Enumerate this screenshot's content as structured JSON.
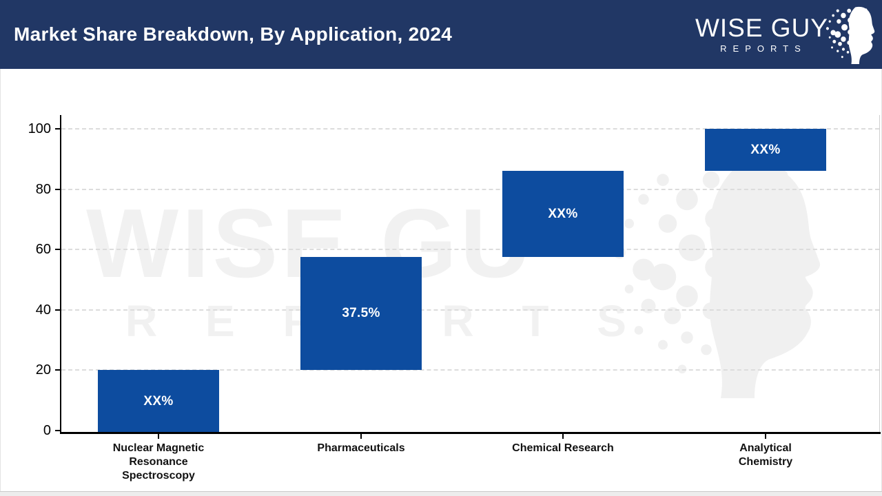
{
  "header": {
    "title": "Market Share Breakdown, By Application, 2024",
    "brand_line1": "WISE GUY",
    "brand_line2": "REPORTS"
  },
  "watermark": {
    "line1": "WISE GU",
    "line2": "R E P O R T S"
  },
  "chart_data": {
    "type": "bar",
    "subtype": "floating-waterfall",
    "title": "Market Share Breakdown, By Application, 2024",
    "categories": [
      "Nuclear Magnetic\nResonance\nSpectroscopy",
      "Pharmaceuticals",
      "Chemical Research",
      "Analytical\nChemistry"
    ],
    "series": [
      {
        "name": "Market Share",
        "segments": [
          {
            "category": "Nuclear Magnetic Resonance Spectroscopy",
            "start": 0,
            "end": 20,
            "label": "XX%"
          },
          {
            "category": "Pharmaceuticals",
            "start": 20,
            "end": 57.5,
            "label": "37.5%"
          },
          {
            "category": "Chemical Research",
            "start": 57.5,
            "end": 86,
            "label": "XX%"
          },
          {
            "category": "Analytical Chemistry",
            "start": 86,
            "end": 100,
            "label": "XX%"
          }
        ]
      }
    ],
    "values": [
      20,
      37.5,
      28.5,
      14
    ],
    "yticks": [
      0,
      20,
      40,
      60,
      80,
      100
    ],
    "ylim": [
      0,
      105
    ],
    "xlabel": "",
    "ylabel": "",
    "grid": "horizontal-dashed",
    "legend": "none",
    "bar_color": "#0d4c9f",
    "bar_label_color": "#ffffff"
  },
  "colors": {
    "header_bg": "#213765",
    "accent_blue": "#0d4c9f",
    "watermark": "#f1f1f1",
    "grid": "#dcdcdc",
    "axis": "#000000"
  }
}
